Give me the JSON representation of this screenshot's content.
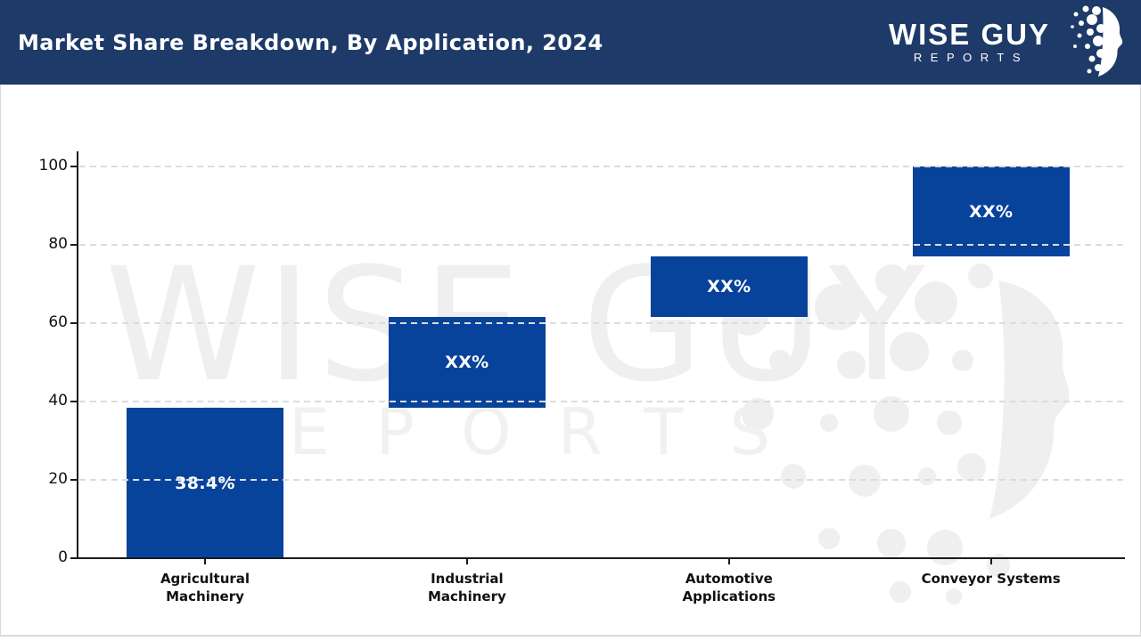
{
  "header": {
    "title": "Market Share Breakdown, By Application, 2024",
    "logo": {
      "line1": "WISE GUY",
      "line2": "REPORTS"
    }
  },
  "watermark": {
    "line1": "WISE GUY",
    "line2": "REPORTS"
  },
  "chart_data": {
    "type": "bar",
    "subtype": "waterfall-floating-bars",
    "title": "Market Share Breakdown, By Application, 2024",
    "categories": [
      "Agricultural\nMachinery",
      "Industrial\nMachinery",
      "Automotive\nApplications",
      "Conveyor Systems"
    ],
    "segments": [
      {
        "category": "Agricultural Machinery",
        "base": 0,
        "top": 38.4,
        "label": "38.4%"
      },
      {
        "category": "Industrial Machinery",
        "base": 38.4,
        "top": 61.5,
        "label": "XX%"
      },
      {
        "category": "Automotive Applications",
        "base": 61.5,
        "top": 77.0,
        "label": "XX%"
      },
      {
        "category": "Conveyor Systems",
        "base": 77.0,
        "top": 100,
        "label": "XX%"
      }
    ],
    "ylim": [
      0,
      100
    ],
    "yticks": [
      0,
      20,
      40,
      60,
      80,
      100
    ],
    "xlabel": "",
    "ylabel": "",
    "grid": "horizontal-dashed-over-bars",
    "legend": "none",
    "bar_color": "#07429B",
    "bar_label_color": "#ffffff"
  },
  "colors": {
    "header_bg": "#1E3A68",
    "bar": "#07429B",
    "axis": "#1a1a1a",
    "grid": "#dcdcdc",
    "watermark": "#efefef",
    "frame_border": "#d9d9d9"
  }
}
